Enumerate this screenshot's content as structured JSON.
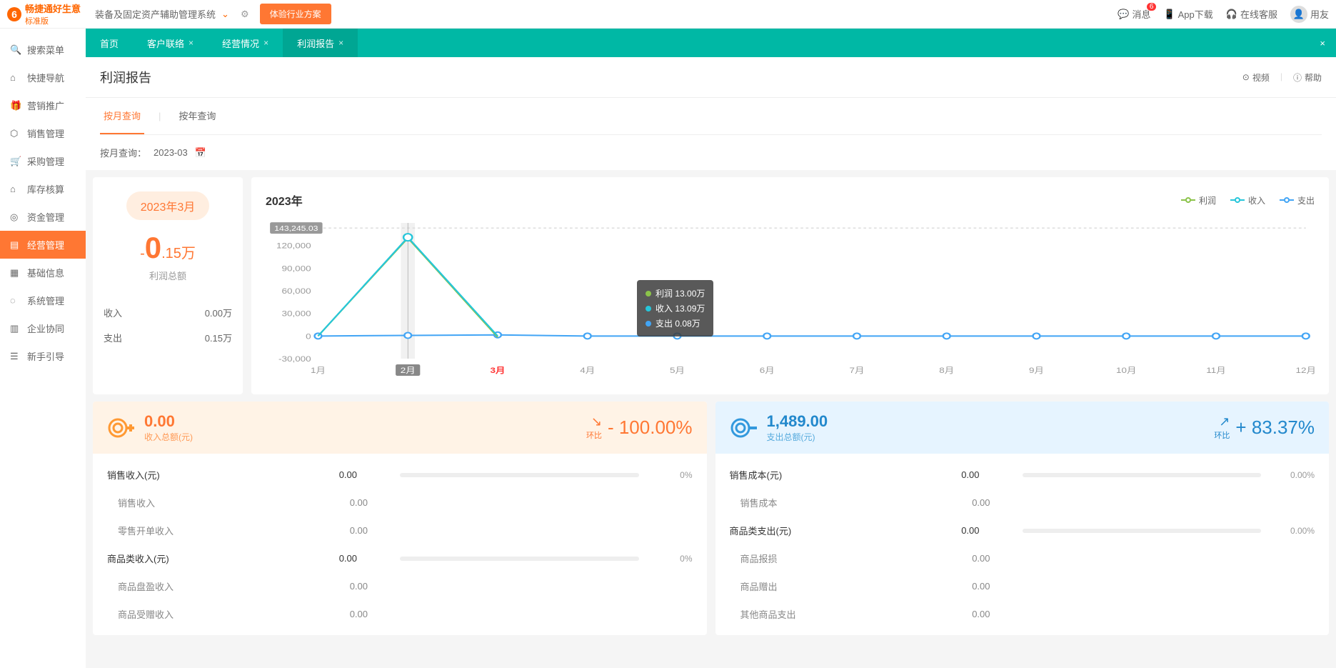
{
  "brand": {
    "name": "畅捷通好生意",
    "edition": "标准版",
    "logo_letter": "6"
  },
  "selector_text": "装备及固定资产辅助管理系统",
  "btn_trial": "体验行业方案",
  "top_links": {
    "msg": "消息",
    "msg_badge": "6",
    "app": "App下载",
    "service": "在线客服",
    "user": "用友"
  },
  "sidebar": [
    {
      "icon": "🔍",
      "label": "搜索菜单"
    },
    {
      "icon": "⌂",
      "label": "快捷导航"
    },
    {
      "icon": "🎁",
      "label": "营销推广"
    },
    {
      "icon": "⬡",
      "label": "销售管理"
    },
    {
      "icon": "🛒",
      "label": "采购管理"
    },
    {
      "icon": "⌂",
      "label": "库存核算"
    },
    {
      "icon": "◎",
      "label": "资金管理"
    },
    {
      "icon": "▤",
      "label": "经营管理",
      "active": true
    },
    {
      "icon": "▦",
      "label": "基础信息"
    },
    {
      "icon": "◌",
      "label": "系统管理"
    },
    {
      "icon": "▥",
      "label": "企业协同"
    },
    {
      "icon": "☰",
      "label": "新手引导"
    }
  ],
  "tabs": [
    {
      "label": "首页",
      "closable": false
    },
    {
      "label": "客户联络",
      "closable": true
    },
    {
      "label": "经营情况",
      "closable": true
    },
    {
      "label": "利润报告",
      "closable": true,
      "active": true
    }
  ],
  "page_title": "利润报告",
  "ph_links": {
    "video": "视频",
    "help": "帮助"
  },
  "qtabs": {
    "month": "按月查询",
    "year": "按年查询"
  },
  "query": {
    "label": "按月查询：",
    "value": "2023-03"
  },
  "month_card": {
    "badge": "2023年3月",
    "profit_prefix": "-",
    "profit_int": "0",
    "profit_dec": ".15",
    "profit_unit": "万",
    "profit_label": "利润总额",
    "rows": [
      {
        "k": "收入",
        "v": "0.00万"
      },
      {
        "k": "支出",
        "v": "0.15万"
      }
    ]
  },
  "chart": {
    "title": "2023年",
    "legend": [
      {
        "label": "利润",
        "cls": "green",
        "color": "#8bc34a"
      },
      {
        "label": "收入",
        "cls": "cyan",
        "color": "#26c6da"
      },
      {
        "label": "支出",
        "cls": "blue",
        "color": "#42a5f5"
      }
    ],
    "y_ticks": [
      "-30,000",
      "0",
      "30,000",
      "60,000",
      "90,000",
      "120,000"
    ],
    "y_values": [
      -30000,
      0,
      30000,
      60000,
      90000,
      120000
    ],
    "peak_label": "143,245.03",
    "x_labels": [
      "1月",
      "2月",
      "3月",
      "4月",
      "5月",
      "6月",
      "7月",
      "8月",
      "9月",
      "10月",
      "11月",
      "12月"
    ],
    "current_month_index": 2,
    "highlight_month_index": 1,
    "highlight_label": "2月",
    "series": {
      "profit": {
        "color": "#8bc34a",
        "values": [
          0,
          130000,
          -1500,
          null,
          null,
          null,
          null,
          null,
          null,
          null,
          null,
          null
        ]
      },
      "income": {
        "color": "#26c6da",
        "values": [
          0,
          130900,
          0,
          null,
          null,
          null,
          null,
          null,
          null,
          null,
          null,
          null
        ]
      },
      "expense": {
        "color": "#42a5f5",
        "values": [
          0,
          800,
          1500,
          0,
          0,
          0,
          0,
          0,
          0,
          0,
          0,
          0
        ]
      }
    },
    "tooltip": [
      {
        "color": "#8bc34a",
        "text": "利润 13.00万"
      },
      {
        "color": "#26c6da",
        "text": "收入 13.09万"
      },
      {
        "color": "#42a5f5",
        "text": "支出 0.08万"
      }
    ]
  },
  "income_card": {
    "value": "0.00",
    "sub": "收入总额(元)",
    "trend_label": "环比",
    "trend_sign": "-",
    "trend_pct": "100.00%",
    "rows": [
      {
        "label": "销售收入(元)",
        "val": "0.00",
        "pct": "0%",
        "bar": true
      },
      {
        "label": "销售收入",
        "val": "0.00",
        "sub": true
      },
      {
        "label": "零售开单收入",
        "val": "0.00",
        "sub": true
      },
      {
        "label": "商品类收入(元)",
        "val": "0.00",
        "pct": "0%",
        "bar": true
      },
      {
        "label": "商品盘盈收入",
        "val": "0.00",
        "sub": true
      },
      {
        "label": "商品受赠收入",
        "val": "0.00",
        "sub": true
      }
    ]
  },
  "expense_card": {
    "value": "1,489.00",
    "sub": "支出总额(元)",
    "trend_label": "环比",
    "trend_sign": "+",
    "trend_pct": "83.37%",
    "rows": [
      {
        "label": "销售成本(元)",
        "val": "0.00",
        "pct": "0.00%",
        "bar": true
      },
      {
        "label": "销售成本",
        "val": "0.00",
        "sub": true
      },
      {
        "label": "商品类支出(元)",
        "val": "0.00",
        "pct": "0.00%",
        "bar": true
      },
      {
        "label": "商品报损",
        "val": "0.00",
        "sub": true
      },
      {
        "label": "商品赠出",
        "val": "0.00",
        "sub": true
      },
      {
        "label": "其他商品支出",
        "val": "0.00",
        "sub": true
      }
    ]
  }
}
